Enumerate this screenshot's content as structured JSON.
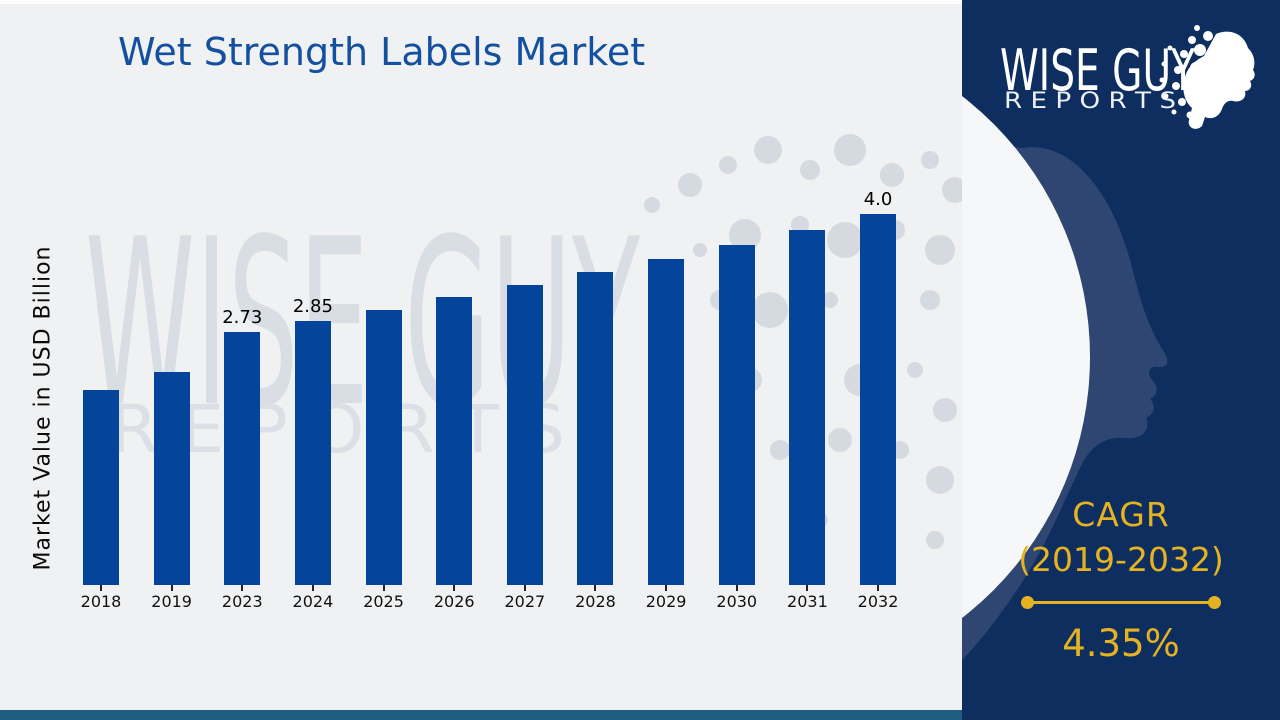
{
  "page": {
    "title": "Wet Strength Labels Market"
  },
  "watermark": {
    "line1": "WISE GUY",
    "line2": "R E P O R T S"
  },
  "chart_data": {
    "type": "bar",
    "title": "Wet Strength Labels Market",
    "ylabel": "Market Value in USD Billion",
    "xlabel": "",
    "categories": [
      "2018",
      "2019",
      "2023",
      "2024",
      "2025",
      "2026",
      "2027",
      "2028",
      "2029",
      "2030",
      "2031",
      "2032"
    ],
    "values": [
      2.1,
      2.3,
      2.73,
      2.85,
      2.97,
      3.1,
      3.23,
      3.37,
      3.52,
      3.67,
      3.83,
      4.0
    ],
    "bar_labels": [
      "",
      "",
      "2.73",
      "2.85",
      "",
      "",
      "",
      "",
      "",
      "",
      "",
      "4.0"
    ],
    "ylim": [
      0,
      4.3
    ],
    "grid": false,
    "legend_position": "none",
    "bar_color": "#04449b"
  },
  "side_panel": {
    "brand_line1": "WISE GUY",
    "brand_line2": "R E P O R T S",
    "cagr_label": "CAGR",
    "cagr_range": "(2019-2032)",
    "cagr_value": "4.35%"
  },
  "colors": {
    "bar_blue": "#04449b",
    "title_blue": "#1450a0",
    "panel_navy": "#0d2e5f",
    "accent_gold": "#e5b321",
    "teal_strip": "#1e5d7e",
    "watermark_gray": "#d9dde4",
    "face_blue": "#2f4672",
    "chart_bg": "#f0f1f2",
    "panel_circle": "#f6f7f8"
  }
}
